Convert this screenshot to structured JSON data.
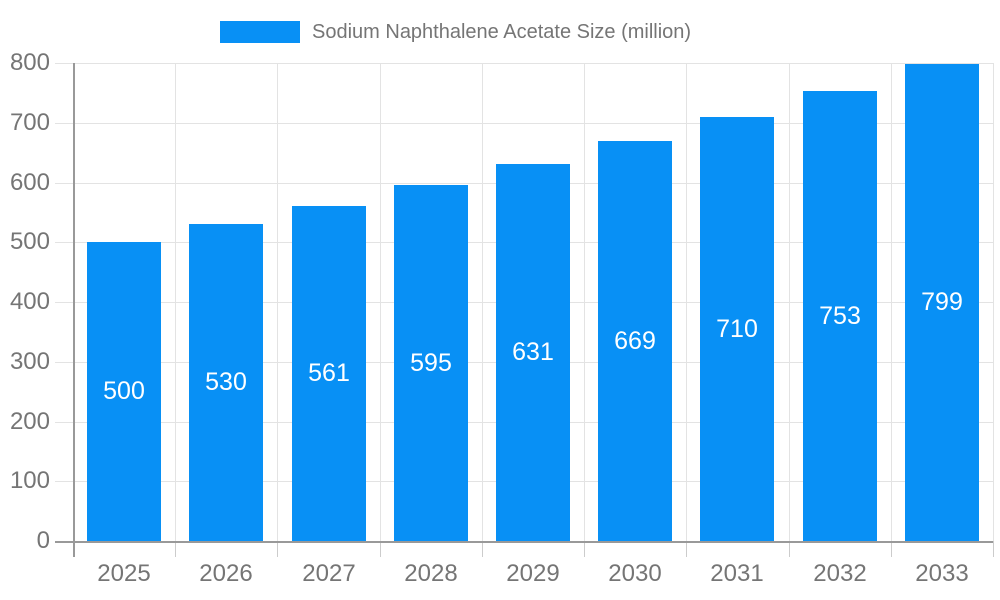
{
  "legend": {
    "label": "Sodium Naphthalene Acetate Size (million)"
  },
  "colors": {
    "bar": "#0890F5",
    "grid": "#e3e3e3",
    "axis": "#999999",
    "tick": "#cccccc",
    "text": "#757575",
    "value_label": "#ffffff",
    "background": "#ffffff"
  },
  "chart_data": {
    "type": "bar",
    "title": "",
    "categories": [
      "2025",
      "2026",
      "2027",
      "2028",
      "2029",
      "2030",
      "2031",
      "2032",
      "2033"
    ],
    "series": [
      {
        "name": "Sodium Naphthalene Acetate Size (million)",
        "values": [
          500,
          530,
          561,
          595,
          631,
          669,
          710,
          753,
          799
        ]
      }
    ],
    "value_labels": [
      500,
      530,
      561,
      595,
      631,
      669,
      710,
      753,
      799
    ],
    "value_label_position": "inside-center",
    "xlabel": "",
    "ylabel": "",
    "ylim": [
      0,
      800
    ],
    "yticks": [
      0,
      100,
      200,
      300,
      400,
      500,
      600,
      700,
      800
    ],
    "grid": true,
    "legend_position": "top"
  }
}
